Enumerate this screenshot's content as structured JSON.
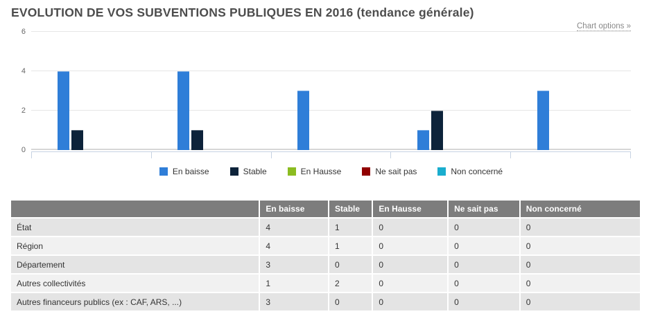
{
  "header": {
    "title": "EVOLUTION DE VOS SUBVENTIONS PUBLIQUES EN 2016 (tendance générale)",
    "chart_options_label": "Chart options »"
  },
  "chart_data": {
    "type": "bar",
    "title": "EVOLUTION DE VOS SUBVENTIONS PUBLIQUES EN 2016 (tendance générale)",
    "xlabel": "",
    "ylabel": "",
    "categories": [
      "État",
      "Région",
      "Département",
      "Autres collectivités",
      "Autres financeurs publics (ex : CAF, ARS, ...)"
    ],
    "series": [
      {
        "name": "En baisse",
        "color": "#2f7ed8",
        "values": [
          4,
          4,
          3,
          1,
          3
        ]
      },
      {
        "name": "Stable",
        "color": "#0d233a",
        "values": [
          1,
          1,
          0,
          2,
          0
        ]
      },
      {
        "name": "En Hausse",
        "color": "#8bbc21",
        "values": [
          0,
          0,
          0,
          0,
          0
        ]
      },
      {
        "name": "Ne sait pas",
        "color": "#910000",
        "values": [
          0,
          0,
          0,
          0,
          0
        ]
      },
      {
        "name": "Non concerné",
        "color": "#1aadce",
        "values": [
          0,
          0,
          0,
          0,
          0
        ]
      }
    ],
    "ylim": [
      0,
      6
    ],
    "yticks": [
      0,
      2,
      4,
      6
    ],
    "grid": true,
    "legend_position": "bottom",
    "x_axis_category_labels_shown": false
  },
  "table": {
    "columns": [
      "",
      "En baisse",
      "Stable",
      "En Hausse",
      "Ne sait pas",
      "Non concerné"
    ],
    "rows": [
      {
        "label": "État",
        "values": [
          4,
          1,
          0,
          0,
          0
        ]
      },
      {
        "label": "Région",
        "values": [
          4,
          1,
          0,
          0,
          0
        ]
      },
      {
        "label": "Département",
        "values": [
          3,
          0,
          0,
          0,
          0
        ]
      },
      {
        "label": "Autres collectivités",
        "values": [
          1,
          2,
          0,
          0,
          0
        ]
      },
      {
        "label": "Autres financeurs publics (ex : CAF, ARS, ...)",
        "values": [
          3,
          0,
          0,
          0,
          0
        ]
      }
    ]
  }
}
